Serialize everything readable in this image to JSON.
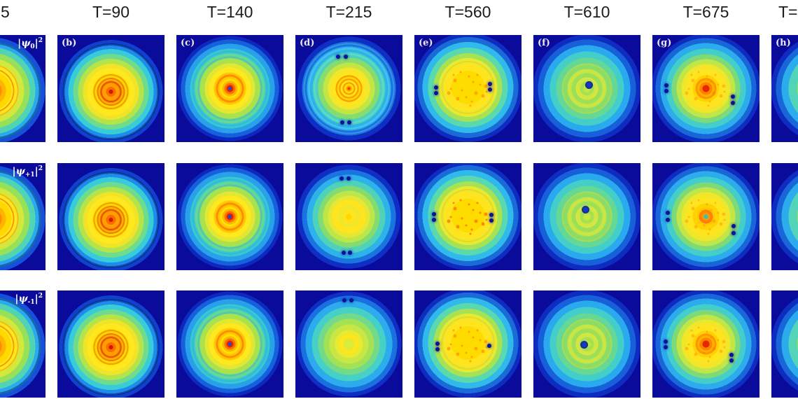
{
  "figure": {
    "type": "heatmap-grid",
    "colormap": "jet",
    "columns": [
      {
        "id": "a",
        "title": "5",
        "letter": "",
        "partial": "left"
      },
      {
        "id": "b",
        "title": "T=90",
        "letter": "(b)"
      },
      {
        "id": "c",
        "title": "T=140",
        "letter": "(c)"
      },
      {
        "id": "d",
        "title": "T=215",
        "letter": "(d)"
      },
      {
        "id": "e",
        "title": "T=560",
        "letter": "(e)"
      },
      {
        "id": "f",
        "title": "T=610",
        "letter": "(f)"
      },
      {
        "id": "g",
        "title": "T=675",
        "letter": "(g)"
      },
      {
        "id": "h",
        "title": "T=",
        "letter": "(h)",
        "partial": "right"
      }
    ],
    "rows": [
      {
        "id": "psi-0",
        "label_open": "|",
        "label_psi": "ψ",
        "label_sub": "0",
        "label_close": "|",
        "label_sup": "2"
      },
      {
        "id": "psi-plus-1",
        "label_open": "|",
        "label_psi": "ψ",
        "label_sub": "+1",
        "label_close": "|",
        "label_sup": "2"
      },
      {
        "id": "psi-minus-1",
        "label_open": "|",
        "label_psi": "ψ",
        "label_sub": "-1",
        "label_close": "|",
        "label_sup": "2"
      }
    ],
    "colors": {
      "page_background": "#ffffff",
      "panel_background": "#0a0a9b",
      "title_text": "#1c1c1c",
      "panel_label_text": "#ffffff"
    }
  }
}
